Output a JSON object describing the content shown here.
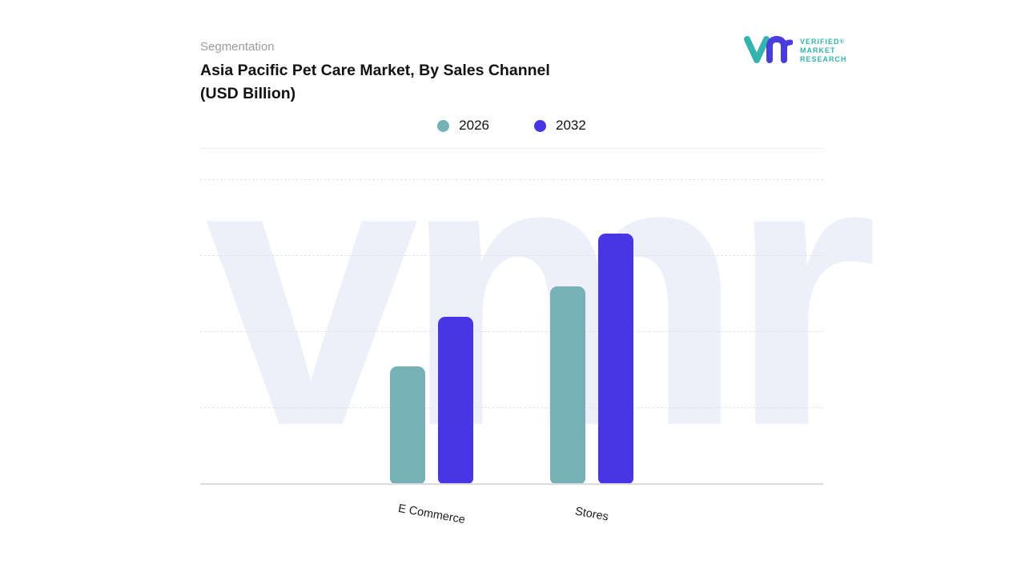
{
  "header": {
    "eyebrow": "Segmentation",
    "title_line1": "Asia Pacific Pet Care Market, By Sales Channel",
    "title_line2": "(USD Billion)",
    "logo": {
      "name_lines": [
        "VERIFIED",
        "MARKET",
        "RESEARCH"
      ],
      "registered_mark": "®",
      "teal": "#35b3ae",
      "indigo": "#4a3de0"
    }
  },
  "legend": [
    {
      "label": "2026",
      "color": "#76b1b5"
    },
    {
      "label": "2032",
      "color": "#4835e4"
    }
  ],
  "watermark": "vmr",
  "colors": {
    "series_2026": "#76b1b5",
    "series_2032": "#4835e4",
    "watermark": "#edeffa",
    "gridline": "#e4e4e6"
  },
  "chart_data": {
    "type": "bar",
    "title": "Asia Pacific Pet Care Market, By Sales Channel (USD Billion)",
    "categories": [
      "E Commerce",
      "Stores"
    ],
    "series": [
      {
        "name": "2026",
        "color": "#76b1b5",
        "values": [
          1.55,
          2.6
        ]
      },
      {
        "name": "2032",
        "color": "#4835e4",
        "values": [
          2.2,
          3.3
        ]
      }
    ],
    "xlabel": "",
    "ylabel": "",
    "ylim": [
      0,
      4
    ],
    "value_axis_labels_visible": false,
    "gridlines": "horizontal-dashed",
    "legend_position": "top-center"
  }
}
